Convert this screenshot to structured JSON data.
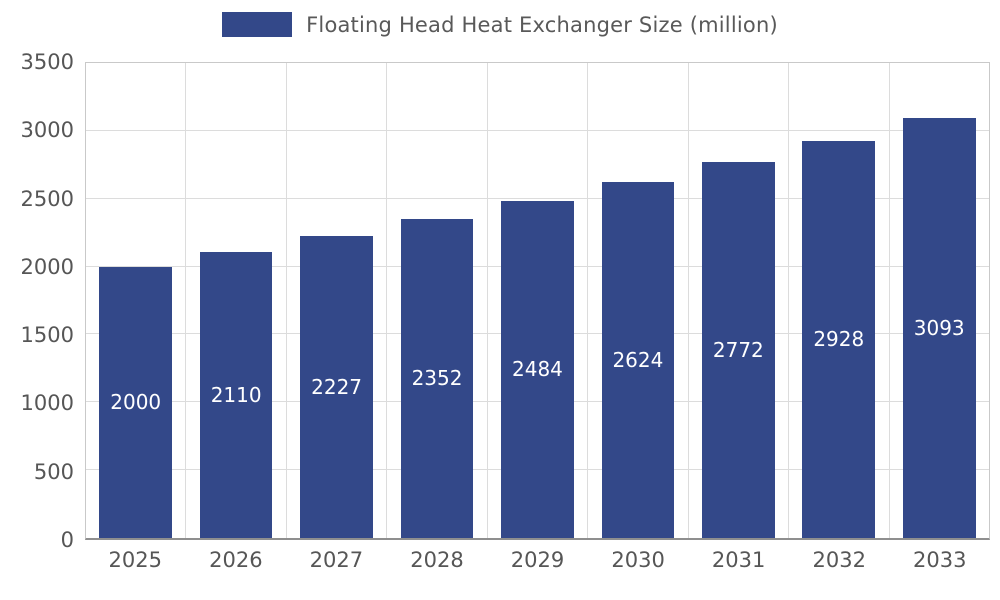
{
  "chart_data": {
    "type": "bar",
    "title": "Floating Head Heat Exchanger Size (million)",
    "categories": [
      "2025",
      "2026",
      "2027",
      "2028",
      "2029",
      "2030",
      "2031",
      "2032",
      "2033"
    ],
    "values": [
      2000,
      2110,
      2227,
      2352,
      2484,
      2624,
      2772,
      2928,
      3093
    ],
    "xlabel": "",
    "ylabel": "",
    "ylim": [
      0,
      3500
    ],
    "y_ticks": [
      0,
      500,
      1000,
      1500,
      2000,
      2500,
      3000,
      3500
    ],
    "grid": true,
    "legend_position": "top",
    "colors": {
      "bar": "#334889",
      "bar_value_label": "#ffffff",
      "axis_text": "#565656",
      "gridline": "#dcdcdc",
      "title_text": "#595959"
    }
  }
}
